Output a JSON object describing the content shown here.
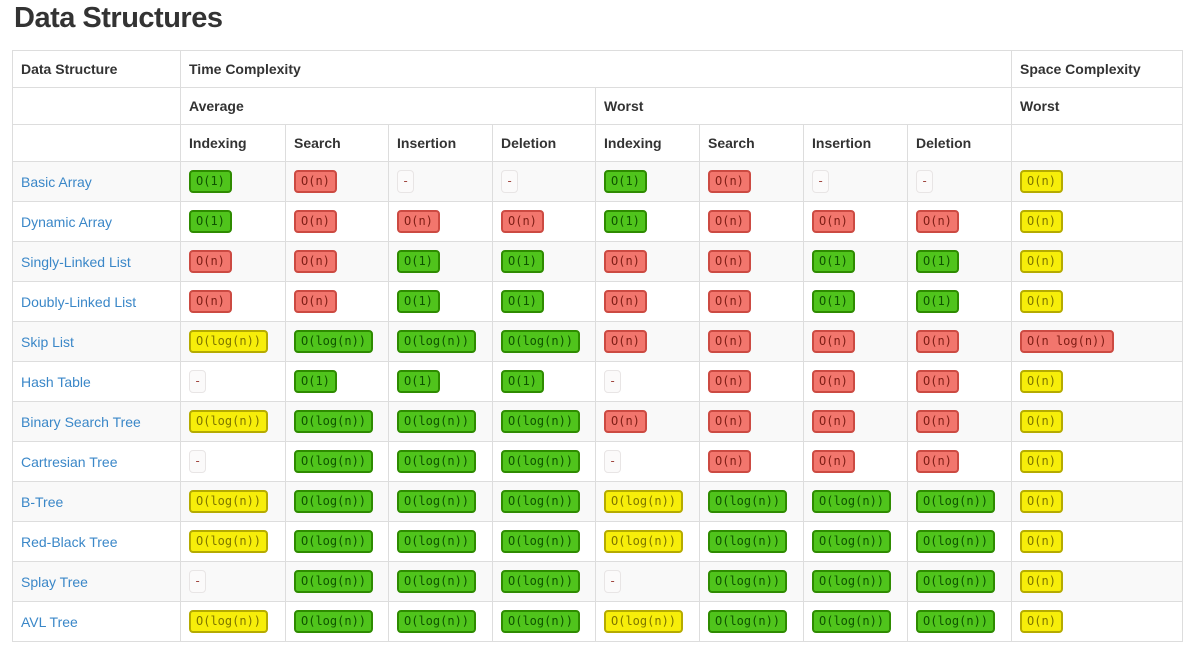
{
  "page": {
    "title": "Data Structures"
  },
  "colors": {
    "heading_color": "#333333",
    "link_color": "#3a87c8",
    "border_color": "#dddddd",
    "stripe_bg": "#f9f9f9",
    "green_bg": "#50c41c",
    "green_border": "#2e8b00",
    "green_text": "#0f5200",
    "red_bg": "#f2766d",
    "red_border": "#cc4a42",
    "red_text": "#7e1d15",
    "yellow_bg": "#f7ee0a",
    "yellow_border": "#b5ab00",
    "yellow_text": "#7d7400",
    "gray_bg": "#fbfafa",
    "gray_border": "#e8e5e5",
    "gray_text": "#a04740"
  },
  "table": {
    "header": {
      "data_structure": "Data Structure",
      "time_complexity": "Time Complexity",
      "space_complexity": "Space Complexity",
      "average": "Average",
      "worst": "Worst",
      "space_worst": "Worst",
      "operations": [
        "Indexing",
        "Search",
        "Insertion",
        "Deletion"
      ]
    },
    "rows": [
      {
        "name": "Basic Array",
        "cells": [
          {
            "t": "O(1)",
            "c": "green"
          },
          {
            "t": "O(n)",
            "c": "red"
          },
          {
            "t": "-",
            "c": "gray"
          },
          {
            "t": "-",
            "c": "gray"
          },
          {
            "t": "O(1)",
            "c": "green"
          },
          {
            "t": "O(n)",
            "c": "red"
          },
          {
            "t": "-",
            "c": "gray"
          },
          {
            "t": "-",
            "c": "gray"
          },
          {
            "t": "O(n)",
            "c": "yellow"
          }
        ]
      },
      {
        "name": "Dynamic Array",
        "cells": [
          {
            "t": "O(1)",
            "c": "green"
          },
          {
            "t": "O(n)",
            "c": "red"
          },
          {
            "t": "O(n)",
            "c": "red"
          },
          {
            "t": "O(n)",
            "c": "red"
          },
          {
            "t": "O(1)",
            "c": "green"
          },
          {
            "t": "O(n)",
            "c": "red"
          },
          {
            "t": "O(n)",
            "c": "red"
          },
          {
            "t": "O(n)",
            "c": "red"
          },
          {
            "t": "O(n)",
            "c": "yellow"
          }
        ]
      },
      {
        "name": "Singly-Linked List",
        "cells": [
          {
            "t": "O(n)",
            "c": "red"
          },
          {
            "t": "O(n)",
            "c": "red"
          },
          {
            "t": "O(1)",
            "c": "green"
          },
          {
            "t": "O(1)",
            "c": "green"
          },
          {
            "t": "O(n)",
            "c": "red"
          },
          {
            "t": "O(n)",
            "c": "red"
          },
          {
            "t": "O(1)",
            "c": "green"
          },
          {
            "t": "O(1)",
            "c": "green"
          },
          {
            "t": "O(n)",
            "c": "yellow"
          }
        ]
      },
      {
        "name": "Doubly-Linked List",
        "cells": [
          {
            "t": "O(n)",
            "c": "red"
          },
          {
            "t": "O(n)",
            "c": "red"
          },
          {
            "t": "O(1)",
            "c": "green"
          },
          {
            "t": "O(1)",
            "c": "green"
          },
          {
            "t": "O(n)",
            "c": "red"
          },
          {
            "t": "O(n)",
            "c": "red"
          },
          {
            "t": "O(1)",
            "c": "green"
          },
          {
            "t": "O(1)",
            "c": "green"
          },
          {
            "t": "O(n)",
            "c": "yellow"
          }
        ]
      },
      {
        "name": "Skip List",
        "cells": [
          {
            "t": "O(log(n))",
            "c": "yellow"
          },
          {
            "t": "O(log(n))",
            "c": "green"
          },
          {
            "t": "O(log(n))",
            "c": "green"
          },
          {
            "t": "O(log(n))",
            "c": "green"
          },
          {
            "t": "O(n)",
            "c": "red"
          },
          {
            "t": "O(n)",
            "c": "red"
          },
          {
            "t": "O(n)",
            "c": "red"
          },
          {
            "t": "O(n)",
            "c": "red"
          },
          {
            "t": "O(n log(n))",
            "c": "red"
          }
        ]
      },
      {
        "name": "Hash Table",
        "cells": [
          {
            "t": "-",
            "c": "gray"
          },
          {
            "t": "O(1)",
            "c": "green"
          },
          {
            "t": "O(1)",
            "c": "green"
          },
          {
            "t": "O(1)",
            "c": "green"
          },
          {
            "t": "-",
            "c": "gray"
          },
          {
            "t": "O(n)",
            "c": "red"
          },
          {
            "t": "O(n)",
            "c": "red"
          },
          {
            "t": "O(n)",
            "c": "red"
          },
          {
            "t": "O(n)",
            "c": "yellow"
          }
        ]
      },
      {
        "name": "Binary Search Tree",
        "cells": [
          {
            "t": "O(log(n))",
            "c": "yellow"
          },
          {
            "t": "O(log(n))",
            "c": "green"
          },
          {
            "t": "O(log(n))",
            "c": "green"
          },
          {
            "t": "O(log(n))",
            "c": "green"
          },
          {
            "t": "O(n)",
            "c": "red"
          },
          {
            "t": "O(n)",
            "c": "red"
          },
          {
            "t": "O(n)",
            "c": "red"
          },
          {
            "t": "O(n)",
            "c": "red"
          },
          {
            "t": "O(n)",
            "c": "yellow"
          }
        ]
      },
      {
        "name": "Cartresian Tree",
        "cells": [
          {
            "t": "-",
            "c": "gray"
          },
          {
            "t": "O(log(n))",
            "c": "green"
          },
          {
            "t": "O(log(n))",
            "c": "green"
          },
          {
            "t": "O(log(n))",
            "c": "green"
          },
          {
            "t": "-",
            "c": "gray"
          },
          {
            "t": "O(n)",
            "c": "red"
          },
          {
            "t": "O(n)",
            "c": "red"
          },
          {
            "t": "O(n)",
            "c": "red"
          },
          {
            "t": "O(n)",
            "c": "yellow"
          }
        ]
      },
      {
        "name": "B-Tree",
        "cells": [
          {
            "t": "O(log(n))",
            "c": "yellow"
          },
          {
            "t": "O(log(n))",
            "c": "green"
          },
          {
            "t": "O(log(n))",
            "c": "green"
          },
          {
            "t": "O(log(n))",
            "c": "green"
          },
          {
            "t": "O(log(n))",
            "c": "yellow"
          },
          {
            "t": "O(log(n))",
            "c": "green"
          },
          {
            "t": "O(log(n))",
            "c": "green"
          },
          {
            "t": "O(log(n))",
            "c": "green"
          },
          {
            "t": "O(n)",
            "c": "yellow"
          }
        ]
      },
      {
        "name": "Red-Black Tree",
        "cells": [
          {
            "t": "O(log(n))",
            "c": "yellow"
          },
          {
            "t": "O(log(n))",
            "c": "green"
          },
          {
            "t": "O(log(n))",
            "c": "green"
          },
          {
            "t": "O(log(n))",
            "c": "green"
          },
          {
            "t": "O(log(n))",
            "c": "yellow"
          },
          {
            "t": "O(log(n))",
            "c": "green"
          },
          {
            "t": "O(log(n))",
            "c": "green"
          },
          {
            "t": "O(log(n))",
            "c": "green"
          },
          {
            "t": "O(n)",
            "c": "yellow"
          }
        ]
      },
      {
        "name": "Splay Tree",
        "cells": [
          {
            "t": "-",
            "c": "gray"
          },
          {
            "t": "O(log(n))",
            "c": "green"
          },
          {
            "t": "O(log(n))",
            "c": "green"
          },
          {
            "t": "O(log(n))",
            "c": "green"
          },
          {
            "t": "-",
            "c": "gray"
          },
          {
            "t": "O(log(n))",
            "c": "green"
          },
          {
            "t": "O(log(n))",
            "c": "green"
          },
          {
            "t": "O(log(n))",
            "c": "green"
          },
          {
            "t": "O(n)",
            "c": "yellow"
          }
        ]
      },
      {
        "name": "AVL Tree",
        "cells": [
          {
            "t": "O(log(n))",
            "c": "yellow"
          },
          {
            "t": "O(log(n))",
            "c": "green"
          },
          {
            "t": "O(log(n))",
            "c": "green"
          },
          {
            "t": "O(log(n))",
            "c": "green"
          },
          {
            "t": "O(log(n))",
            "c": "yellow"
          },
          {
            "t": "O(log(n))",
            "c": "green"
          },
          {
            "t": "O(log(n))",
            "c": "green"
          },
          {
            "t": "O(log(n))",
            "c": "green"
          },
          {
            "t": "O(n)",
            "c": "yellow"
          }
        ]
      }
    ]
  }
}
